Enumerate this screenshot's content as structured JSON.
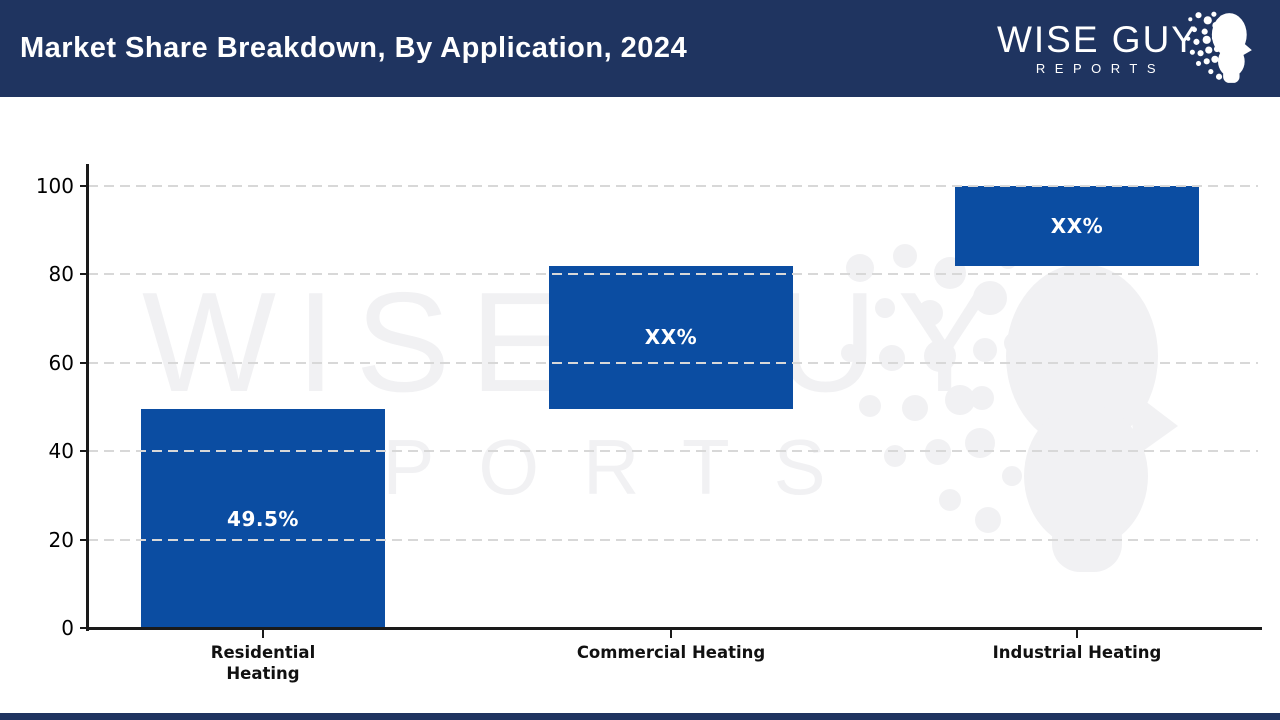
{
  "header": {
    "title": "Market Share Breakdown, By Application, 2024",
    "logo": {
      "line1": "WISE GUY",
      "line2": "REPORTS"
    }
  },
  "watermark": {
    "line1": "WISE GUY",
    "line2": "REPORTS"
  },
  "colors": {
    "header_navy": "#1f3460",
    "bar_blue": "#0b4da2",
    "gridline_gray": "#d8d8d8",
    "watermark_gray": "#f1f1f3",
    "axis_black": "#1a1a1a",
    "bar_label_white": "#ffffff"
  },
  "chart_data": {
    "type": "bar",
    "subtype": "floating-segment-progression",
    "title": "Market Share Breakdown, By Application, 2024",
    "categories": [
      "Residential Heating",
      "Commercial Heating",
      "Industrial Heating"
    ],
    "tick_labels": [
      "Residential\nHeating",
      "Commercial Heating",
      "Industrial Heating"
    ],
    "bars": [
      {
        "category": "Residential Heating",
        "start": 0,
        "end": 49.5,
        "label": "49.5%",
        "segment_size": 49.5
      },
      {
        "category": "Commercial Heating",
        "start": 49.5,
        "end": 82,
        "label": "XX%",
        "segment_size": 32.5
      },
      {
        "category": "Industrial Heating",
        "start": 82,
        "end": 100,
        "label": "XX%",
        "segment_size": 18
      }
    ],
    "xlabel": "",
    "ylabel": "",
    "ylim": [
      0,
      100
    ],
    "yticks": [
      0,
      20,
      40,
      60,
      80,
      100
    ],
    "grid": "horizontal-dashed-over-bars",
    "legend": "none",
    "bar_color": "#0b4da2",
    "label_color": "#ffffff"
  }
}
